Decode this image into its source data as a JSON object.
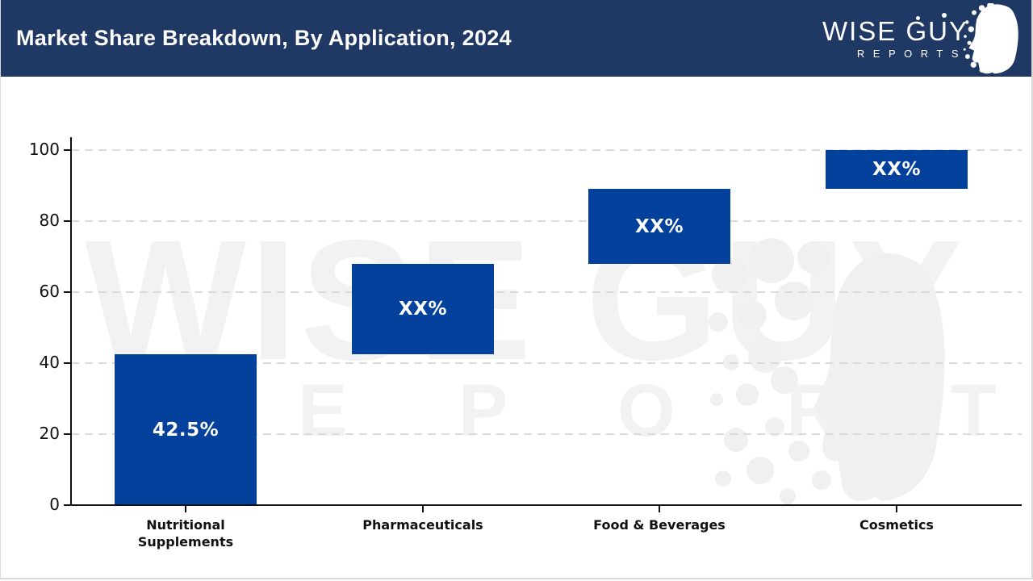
{
  "header": {
    "title": "Market Share Breakdown, By Application, 2024",
    "logo": {
      "line1": "WISE GUY",
      "line2": "REPORTS"
    }
  },
  "watermark": {
    "line1": "WISE GUY",
    "line2": "R E P O R T S"
  },
  "colors": {
    "header_bg": "#203864",
    "bar": "#04419C",
    "bar_label": "#FFFFFF",
    "grid": "#DBDBDB",
    "axis": "#111111",
    "watermark": "#F2F2F2"
  },
  "chart_data": {
    "type": "bar",
    "variant": "waterfall-floating-segments",
    "title": "Market Share Breakdown, By Application, 2024",
    "xlabel": "",
    "ylabel": "",
    "categories": [
      "Nutritional Supplements",
      "Pharmaceuticals",
      "Food & Beverages",
      "Cosmetics"
    ],
    "category_label_lines": [
      [
        "Nutritional",
        "Supplements"
      ],
      [
        "Pharmaceuticals"
      ],
      [
        "Food & Beverages"
      ],
      [
        "Cosmetics"
      ]
    ],
    "segments": [
      {
        "category": "Nutritional Supplements",
        "start": 0,
        "end": 42.5,
        "value_label": "42.5%",
        "segment_size": 42.5
      },
      {
        "category": "Pharmaceuticals",
        "start": 42.5,
        "end": 68,
        "value_label": "XX%",
        "segment_size": 25.5,
        "masked": true
      },
      {
        "category": "Food & Beverages",
        "start": 68,
        "end": 89,
        "value_label": "XX%",
        "segment_size": 21,
        "masked": true
      },
      {
        "category": "Cosmetics",
        "start": 89,
        "end": 100,
        "value_label": "XX%",
        "segment_size": 11,
        "masked": true
      }
    ],
    "yticks": [
      0,
      20,
      40,
      60,
      80,
      100
    ],
    "ylim": [
      0,
      104
    ],
    "grid": "horizontal-dashed",
    "legend": false
  }
}
